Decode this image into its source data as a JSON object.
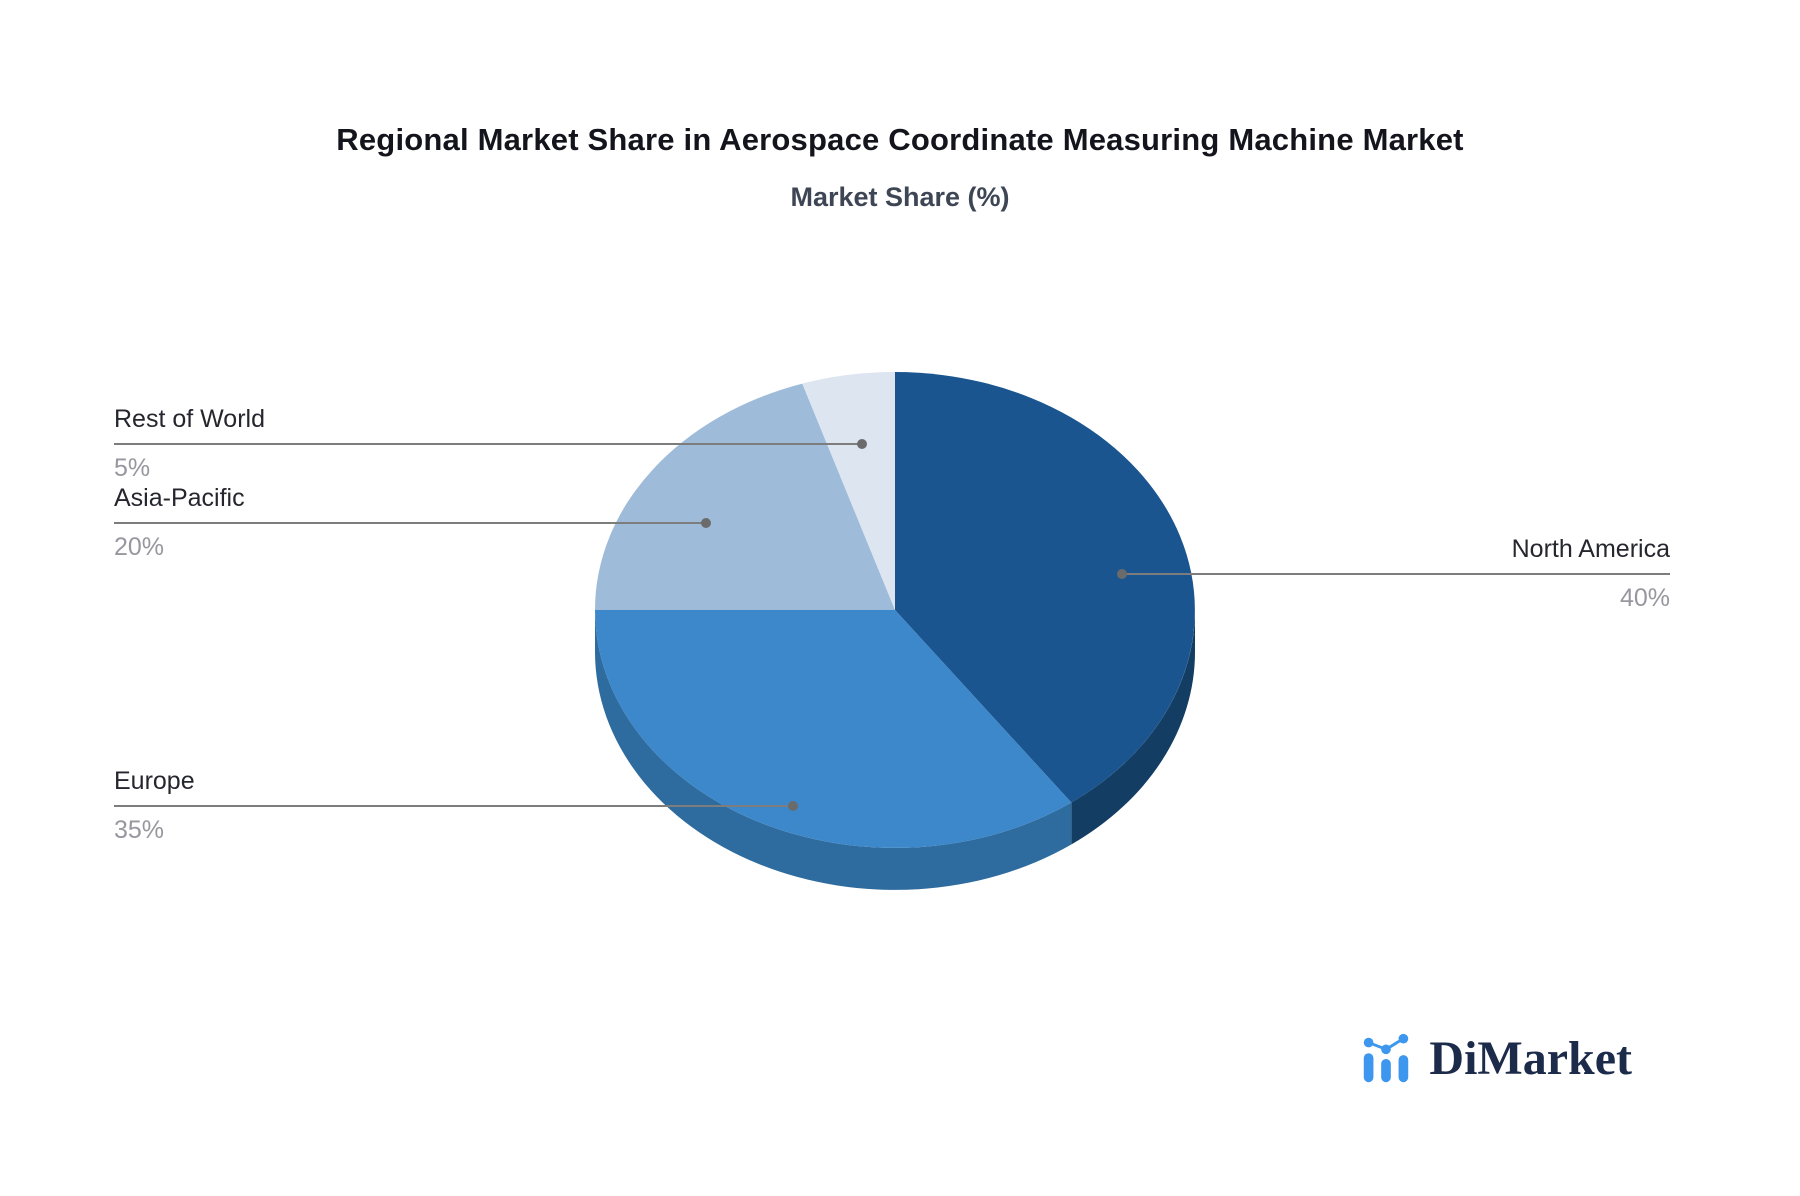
{
  "title": "Regional Market Share in Aerospace Coordinate Measuring Machine Market",
  "subtitle": "Market Share (%)",
  "chart_data": {
    "type": "pie",
    "title": "Regional Market Share in Aerospace Coordinate Measuring Machine Market",
    "subtitle": "Market Share (%)",
    "unit": "%",
    "style": "3d",
    "start_angle_deg": 0,
    "direction": "clockwise",
    "legend_position": "none",
    "labels": "leader-line callouts",
    "items": [
      {
        "label": "North America",
        "value": 40,
        "display": "40%",
        "color": "#1A5590",
        "side_color": "#133D63"
      },
      {
        "label": "Europe",
        "value": 35,
        "display": "35%",
        "color": "#3C88CA",
        "side_color": "#2E6B9E"
      },
      {
        "label": "Asia-Pacific",
        "value": 20,
        "display": "20%",
        "color": "#9EBBDA",
        "side_color": "#7FA3C8"
      },
      {
        "label": "Rest of World",
        "value": 5,
        "display": "5%",
        "color": "#DDE5F0",
        "side_color": "#B9C8DC"
      }
    ]
  },
  "logo": {
    "text": "DiMarket",
    "icon": "bar-chart-trend-icon",
    "icon_color": "#3E97EF",
    "text_color": "#1C2B4A"
  },
  "colors": {
    "background": "#FFFFFF",
    "title_text": "#14141C",
    "subtitle_text": "#3E4656",
    "label_text": "#26262E",
    "value_text": "#97979F",
    "leader_line": "#7D7D7D",
    "leader_dot": "#6B6B6B"
  }
}
